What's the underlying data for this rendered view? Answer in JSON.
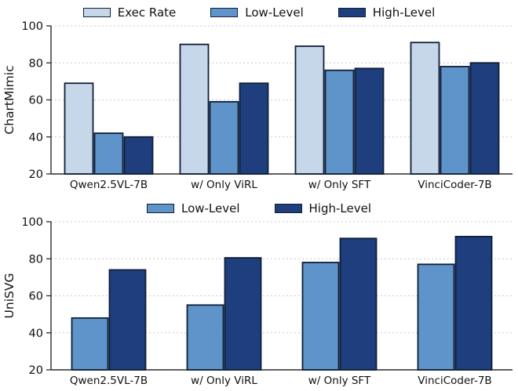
{
  "page": {
    "background": "#ffffff"
  },
  "colors": {
    "exec_rate": "#c7d7ea",
    "low_level": "#5e94c9",
    "high_level": "#1f3e7e",
    "bar_edge": "#0f1e38",
    "grid": "#c9c9c9",
    "axis": "#2b2b2b",
    "text": "#111111"
  },
  "chart_data": [
    {
      "type": "bar",
      "title": "",
      "ylabel": "ChartMimic",
      "xlabel": "",
      "categories": [
        "Qwen2.5VL-7B",
        "w/ Only ViRL",
        "w/ Only SFT",
        "VinciCoder-7B"
      ],
      "series": [
        {
          "name": "Exec Rate",
          "color": "exec_rate",
          "values": [
            69,
            90,
            89,
            91
          ]
        },
        {
          "name": "Low-Level",
          "color": "low_level",
          "values": [
            42,
            59,
            76,
            78
          ]
        },
        {
          "name": "High-Level",
          "color": "high_level",
          "values": [
            40,
            69,
            77,
            80
          ]
        }
      ],
      "ylim": [
        20,
        100
      ],
      "yticks": [
        20,
        40,
        60,
        80,
        100
      ],
      "grid": true,
      "grid_style": "dashed",
      "legend_position": "top-center"
    },
    {
      "type": "bar",
      "title": "",
      "ylabel": "UniSVG",
      "xlabel": "",
      "categories": [
        "Qwen2.5VL-7B",
        "w/ Only ViRL",
        "w/ Only SFT",
        "VinciCoder-7B"
      ],
      "series": [
        {
          "name": "Low-Level",
          "color": "low_level",
          "values": [
            48,
            55,
            78,
            77
          ]
        },
        {
          "name": "High-Level",
          "color": "high_level",
          "values": [
            74,
            80.5,
            91,
            92
          ]
        }
      ],
      "ylim": [
        20,
        100
      ],
      "yticks": [
        20,
        40,
        60,
        80,
        100
      ],
      "grid": true,
      "grid_style": "dashed",
      "legend_position": "top-center"
    }
  ]
}
